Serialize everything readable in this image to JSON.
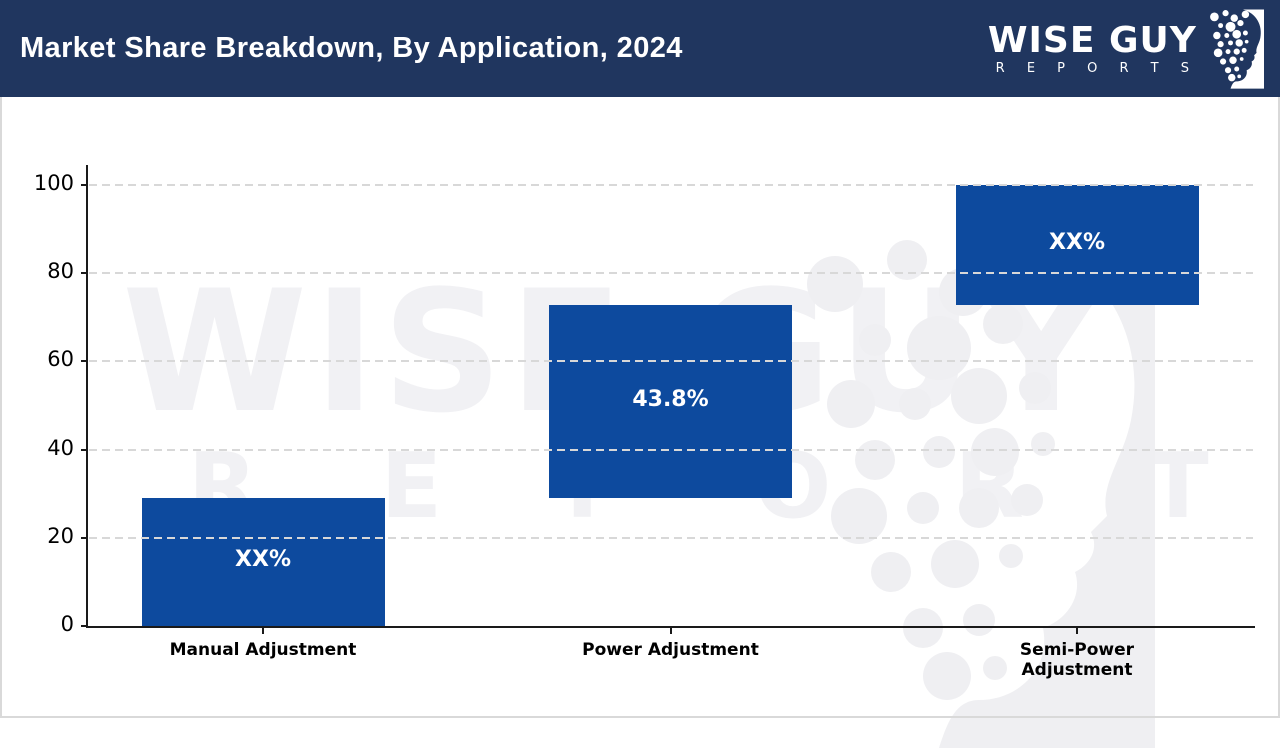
{
  "header": {
    "title": "Market Share Breakdown, By Application, 2024",
    "background_color": "#20365f",
    "logo": {
      "line1": "WISE GUY",
      "line2": "R E P O R T S"
    }
  },
  "watermark": {
    "line1": "WISE GUY",
    "line2": "R E P O R T S"
  },
  "chart_data": {
    "type": "bar",
    "subtype": "waterfall-floating-bars",
    "title": "Market Share Breakdown, By Application, 2024",
    "xlabel": "",
    "ylabel": "",
    "ylim": [
      0,
      100
    ],
    "yticks": [
      0,
      20,
      40,
      60,
      80,
      100
    ],
    "grid": "dashed-horizontal",
    "bar_color": "#0d4a9e",
    "categories": [
      "Manual Adjustment",
      "Power Adjustment",
      "Semi-Power Adjustment"
    ],
    "segments": [
      {
        "category": "Manual Adjustment",
        "start": 0,
        "end": 29,
        "value": 29.0,
        "label": "XX%"
      },
      {
        "category": "Power Adjustment",
        "start": 29,
        "end": 72.8,
        "value": 43.8,
        "label": "43.8%"
      },
      {
        "category": "Semi-Power Adjustment",
        "start": 72.8,
        "end": 100,
        "value": 27.2,
        "label": "XX%"
      }
    ]
  }
}
